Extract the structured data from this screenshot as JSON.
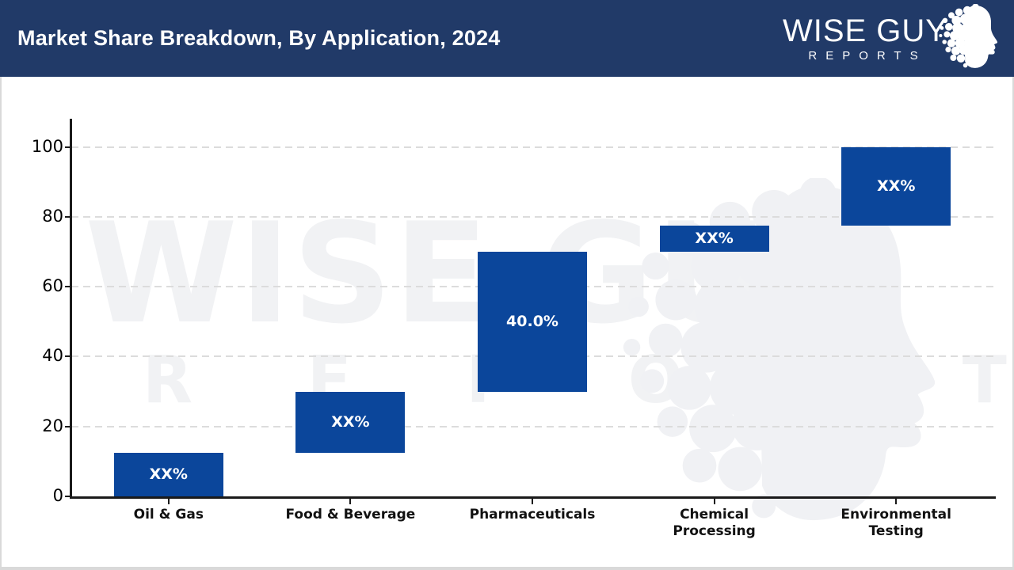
{
  "header": {
    "title": "Market Share Breakdown, By Application, 2024",
    "logo": {
      "line1": "WISE GUY",
      "line2": "REPORTS"
    }
  },
  "watermark": {
    "line1": "WISE GUY",
    "line2": "R E P O R T S"
  },
  "colors": {
    "header_bg": "#213A68",
    "bar": "#0B469B",
    "gridline": "#dcdcdc",
    "axis": "#1a1a1a",
    "bar_label": "#ffffff",
    "watermark": "#f1f2f4"
  },
  "chart_data": {
    "type": "bar",
    "subtype": "floating-segment waterfall of market share",
    "title": "Market Share Breakdown, By Application, 2024",
    "xlabel": "",
    "ylabel": "",
    "ylim": [
      0,
      100
    ],
    "yticks": [
      0,
      20,
      40,
      60,
      80,
      100
    ],
    "grid": "horizontal dashed",
    "legend": "none",
    "bar_color": "#0B469B",
    "categories": [
      "Oil & Gas",
      "Food & Beverage",
      "Pharmaceuticals",
      "Chemical Processing",
      "Environmental Testing"
    ],
    "category_lines": [
      [
        "Oil & Gas"
      ],
      [
        "Food & Beverage"
      ],
      [
        "Pharmaceuticals"
      ],
      [
        "Chemical",
        "Processing"
      ],
      [
        "Environmental",
        "Testing"
      ]
    ],
    "series": [
      {
        "name": "Market Share (%)",
        "segments": [
          {
            "category": "Oil & Gas",
            "start": 0,
            "end": 12.5,
            "label": "XX%"
          },
          {
            "category": "Food & Beverage",
            "start": 12.5,
            "end": 30,
            "label": "XX%"
          },
          {
            "category": "Pharmaceuticals",
            "start": 30,
            "end": 70,
            "label": "40.0%"
          },
          {
            "category": "Chemical Processing",
            "start": 70,
            "end": 77.5,
            "label": "XX%"
          },
          {
            "category": "Environmental Testing",
            "start": 77.5,
            "end": 100,
            "label": "XX%"
          }
        ]
      }
    ]
  }
}
